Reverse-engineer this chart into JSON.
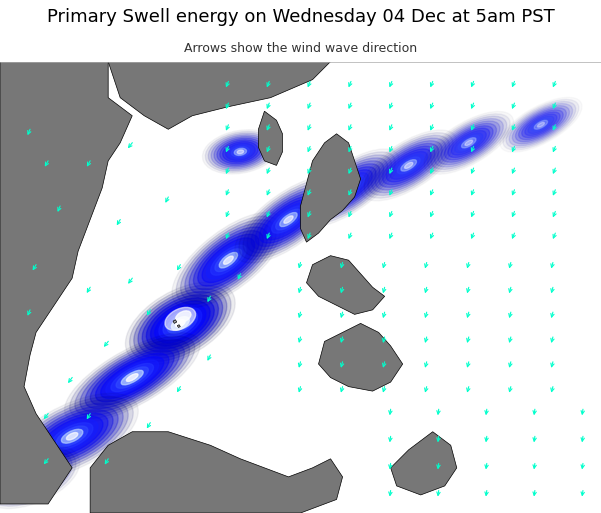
{
  "title": "Primary Swell energy on Wednesday 04 Dec at 5am PST",
  "subtitle": "Arrows show the wind wave direction",
  "title_fontsize": 13,
  "subtitle_fontsize": 9,
  "bg_color": "#ffffff",
  "ocean_color": "#000008",
  "land_color": "#888888",
  "arrow_color": "#00ffcc",
  "fig_width": 6.01,
  "fig_height": 5.13,
  "dpi": 100
}
